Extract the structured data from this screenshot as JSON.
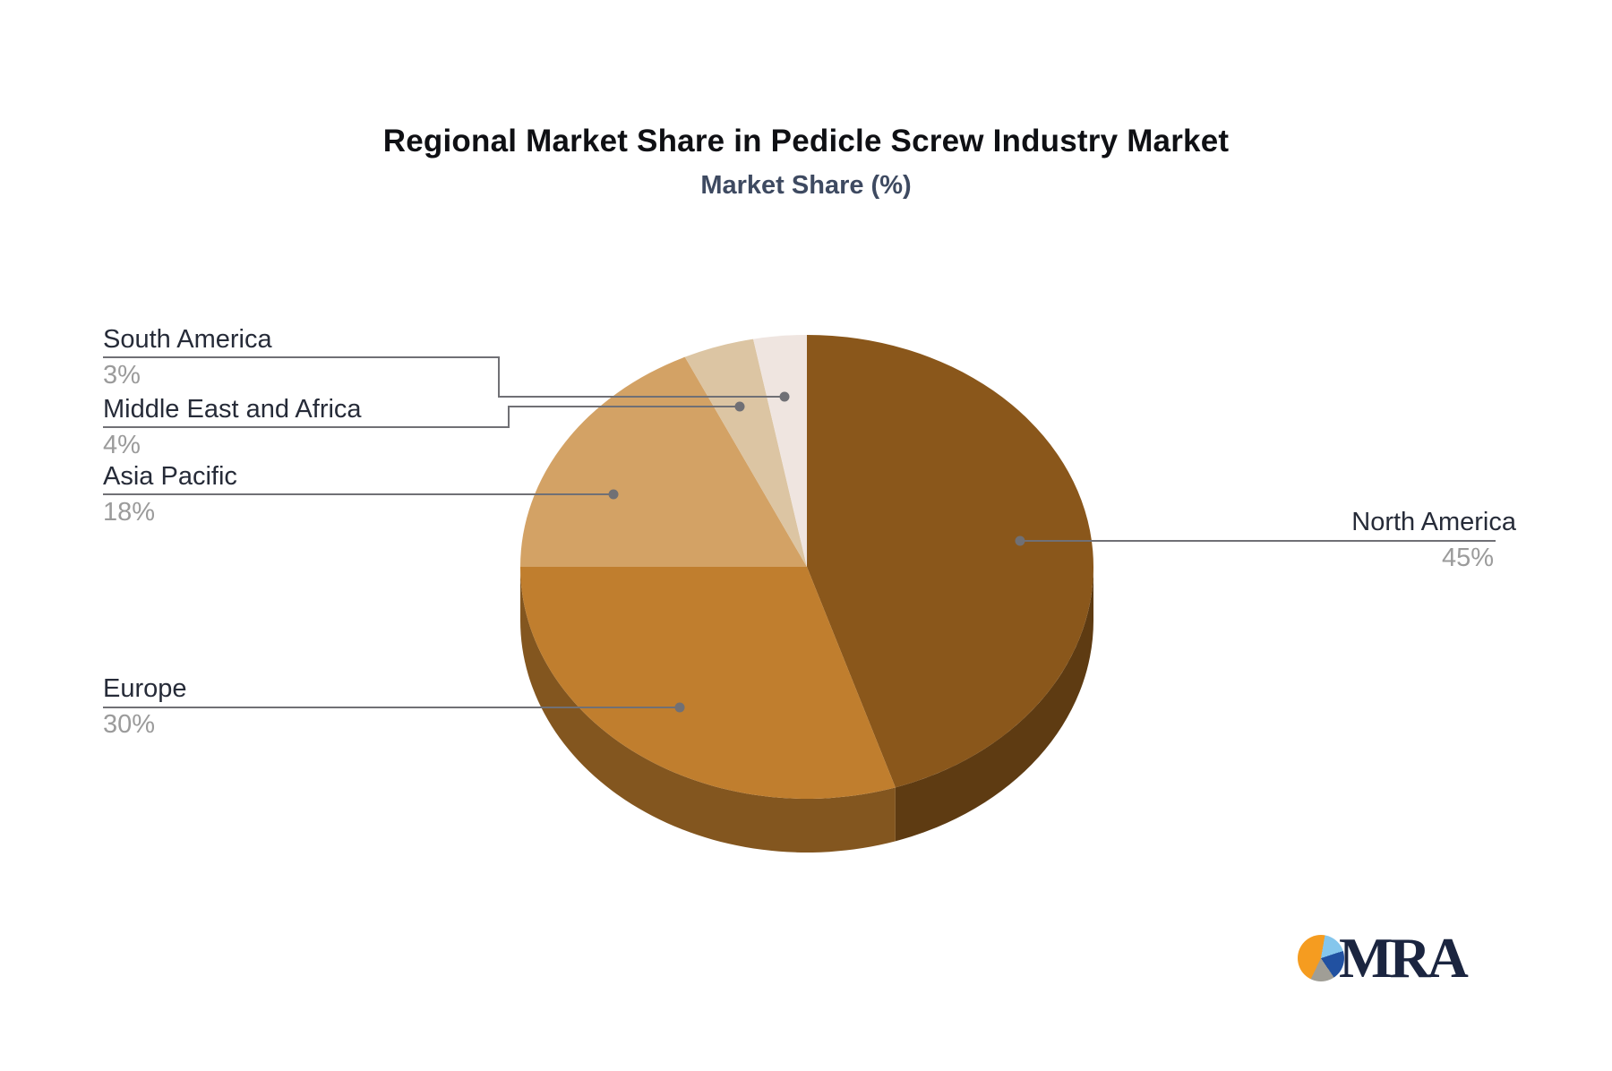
{
  "title": "Regional Market Share in Pedicle Screw Industry Market",
  "subtitle": "Market Share (%)",
  "chart_data": {
    "type": "pie",
    "title": "Regional Market Share in Pedicle Screw Industry Market",
    "subtitle": "Market Share (%)",
    "unit": "%",
    "style": "3d",
    "start_angle_deg": 0,
    "direction": "clockwise",
    "legend": "none",
    "points": [
      {
        "name": "North America",
        "value": 45,
        "label": "45%",
        "color": "#8a571b"
      },
      {
        "name": "Europe",
        "value": 30,
        "label": "30%",
        "color": "#c07e2e"
      },
      {
        "name": "Asia Pacific",
        "value": 18,
        "label": "18%",
        "color": "#d3a265"
      },
      {
        "name": "Middle East and Africa",
        "value": 4,
        "label": "4%",
        "color": "#dcc5a3"
      },
      {
        "name": "South America",
        "value": 3,
        "label": "3%",
        "color": "#efe5e0"
      }
    ],
    "connector_color": "#707075",
    "label_name_color": "#262b38",
    "label_value_color": "#9b9b9b"
  },
  "logo": {
    "text": "MRA",
    "mark_colors": {
      "orange": "#f59c20",
      "light_blue": "#85c6ec",
      "dark_blue": "#2151a1",
      "gray": "#a09e96"
    }
  }
}
